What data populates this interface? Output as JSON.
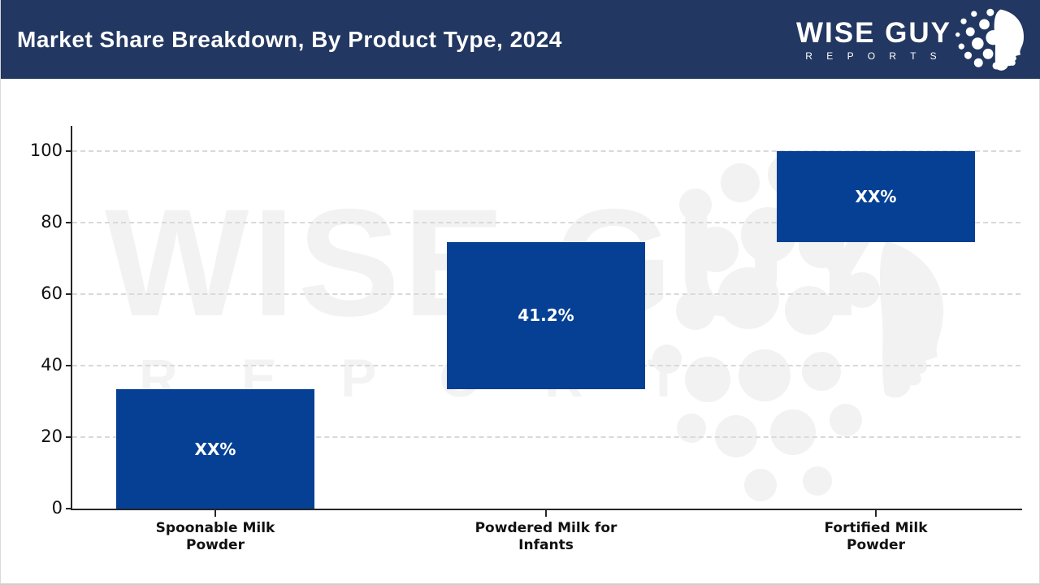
{
  "header": {
    "title": "Market Share Breakdown, By Product Type, 2024",
    "bg_color": "#223761",
    "logo": {
      "wordmark": "WISE GUY",
      "subtext": "R E P O R T S"
    }
  },
  "watermark": {
    "wordmark": "WISE GUY",
    "subtext": "R E P O R T S"
  },
  "chart_data": {
    "type": "bar",
    "variant": "floating-column",
    "title": "Market Share Breakdown, By Product Type, 2024",
    "categories": [
      "Spoonable Milk Powder",
      "Powdered Milk for Infants",
      "Fortified Milk Powder"
    ],
    "category_lines": [
      [
        "Spoonable Milk",
        "Powder"
      ],
      [
        "Powdered Milk for",
        "Infants"
      ],
      [
        "Fortified Milk",
        "Powder"
      ]
    ],
    "series": [
      {
        "name": "Market Share %",
        "segments": [
          {
            "category": "Spoonable Milk Powder",
            "from": 0,
            "to": 33.4,
            "label": "XX%"
          },
          {
            "category": "Powdered Milk for Infants",
            "from": 33.4,
            "to": 74.6,
            "label": "41.2%"
          },
          {
            "category": "Fortified Milk Powder",
            "from": 74.6,
            "to": 100,
            "label": "XX%"
          }
        ]
      }
    ],
    "ylim": [
      0,
      100
    ],
    "yticks": [
      0,
      20,
      40,
      60,
      80,
      100
    ],
    "xlabel": "",
    "ylabel": "",
    "grid": "horizontal-dashed",
    "legend": "none",
    "bar_color": "#054094",
    "bar_label_color": "#ffffff"
  }
}
